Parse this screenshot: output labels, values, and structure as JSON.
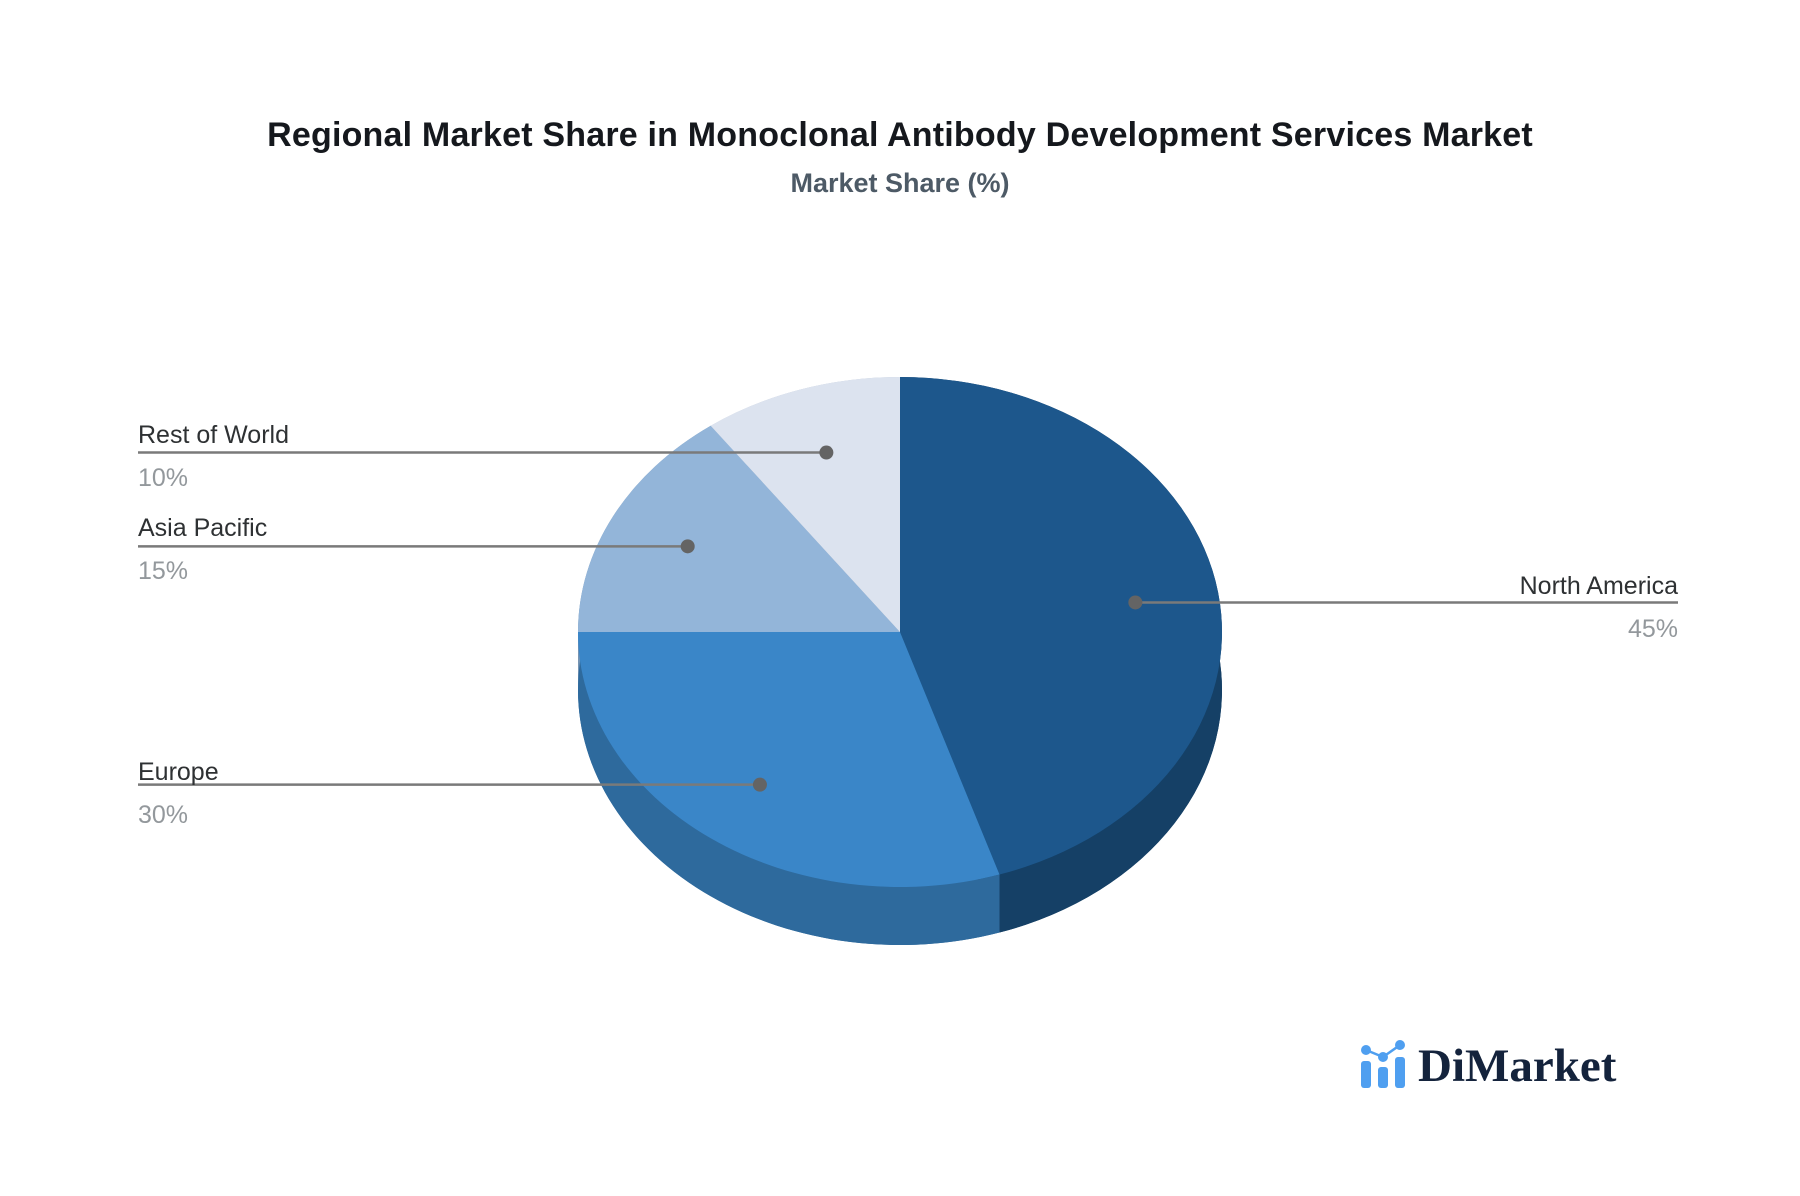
{
  "chart": {
    "title": "Regional Market Share in Monoclonal Antibody Development Services Market",
    "subtitle": "Market Share (%)"
  },
  "chart_data": {
    "type": "pie",
    "title": "Regional Market Share in Monoclonal Antibody Development Services Market",
    "subtitle": "Market Share (%)",
    "unit": "%",
    "categories": [
      "North America",
      "Europe",
      "Asia Pacific",
      "Rest of World"
    ],
    "values": [
      45,
      30,
      15,
      10
    ],
    "colors": [
      "#1d578c",
      "#3a86c8",
      "#93b5d9",
      "#dce3ef"
    ],
    "side_colors": [
      "#154066",
      "#2e6a9d",
      "#7694b3",
      "#b9c3d3"
    ],
    "start_position": "12-oclock",
    "direction": "clockwise",
    "style": "3d",
    "legend_position": "none",
    "leader_line_color": "#7a7a7a",
    "leader_dot_color": "#646464"
  },
  "labels": [
    {
      "name": "North America",
      "pct": "45%"
    },
    {
      "name": "Europe",
      "pct": "30%"
    },
    {
      "name": "Asia Pacific",
      "pct": "15%"
    },
    {
      "name": "Rest of World",
      "pct": "10%"
    }
  ],
  "logo": {
    "text": "DiMarket"
  }
}
